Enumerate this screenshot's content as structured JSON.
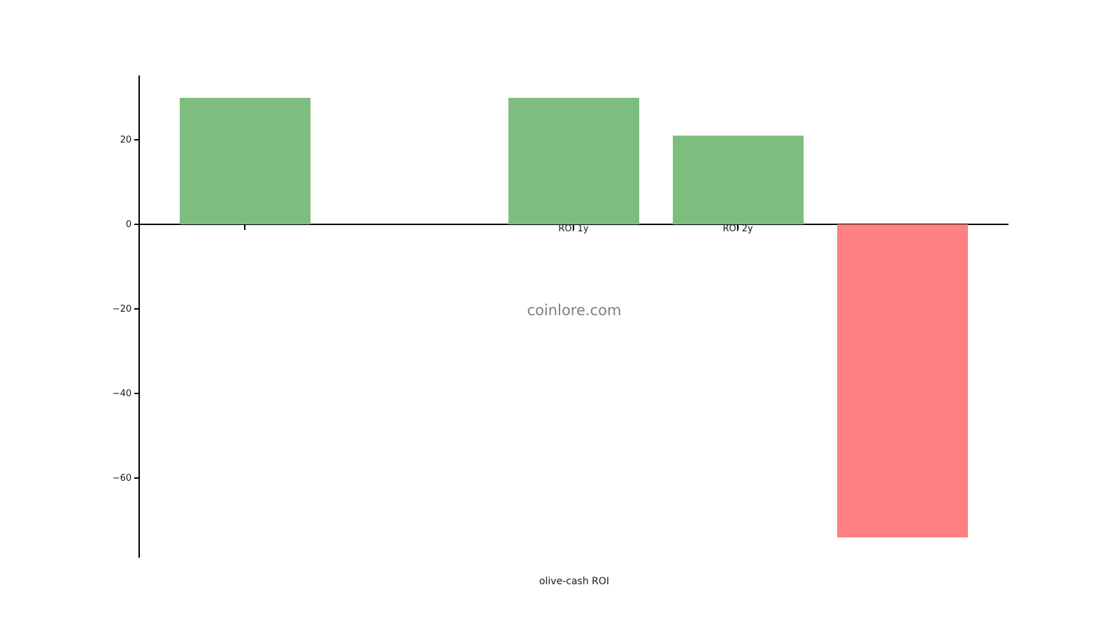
{
  "chart_data": {
    "type": "bar",
    "title": "olive-cash ROI",
    "xlabel": "olive-cash ROI",
    "ylabel": "",
    "watermark": "coinlore.com",
    "categories": [
      "",
      "",
      "ROI 1y",
      "ROI 2y",
      ""
    ],
    "values": [
      30,
      null,
      30,
      21,
      -74
    ],
    "bar_colors": [
      "#7dbd7d",
      null,
      "#7dbd7d",
      "#7dbd7d",
      "#ff8080"
    ],
    "positive_color": "#7dbd7d",
    "negative_color": "#ff8080",
    "axis_color": "#000000",
    "text_color": "#1a1a1a",
    "watermark_color": "#7f7f7f",
    "yticks": [
      {
        "value": 20,
        "label": "20"
      },
      {
        "value": 0,
        "label": "0"
      },
      {
        "value": -20,
        "label": "−20"
      },
      {
        "value": -40,
        "label": "−40"
      },
      {
        "value": -60,
        "label": "−60"
      }
    ],
    "xticks": [
      {
        "category_index": 0,
        "label": ""
      },
      {
        "category_index": 2,
        "label": "ROI 1y"
      },
      {
        "category_index": 3,
        "label": "ROI 2y"
      }
    ],
    "ylim": [
      -79,
      35
    ],
    "grid": false,
    "legend": null
  }
}
